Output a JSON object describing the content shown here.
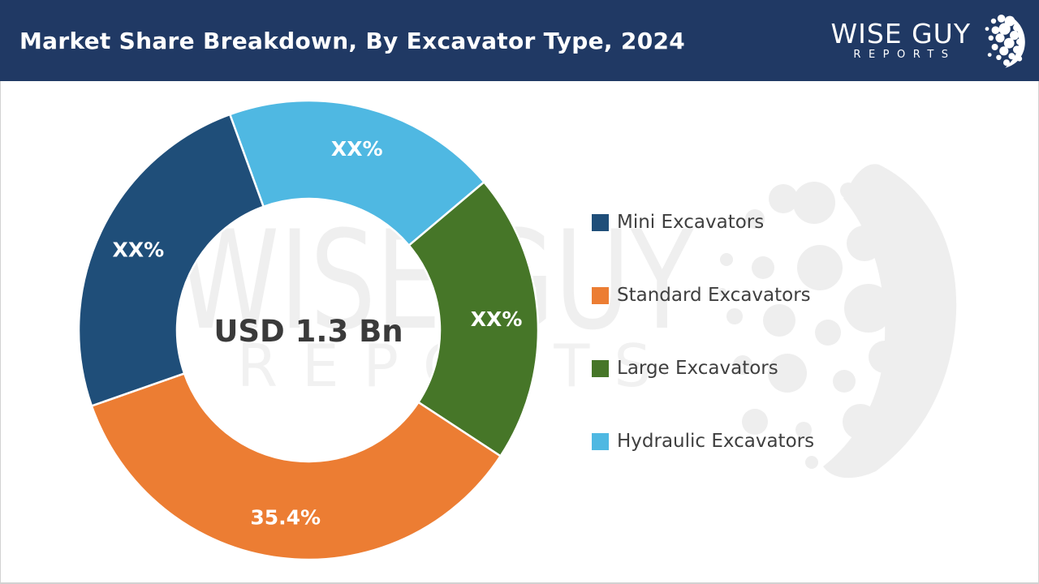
{
  "header": {
    "title": "Market Share Breakdown, By Excavator Type, 2024",
    "background_color": "#203964",
    "logo": {
      "line1": "WISE GUY",
      "line2": "REPORTS"
    }
  },
  "chart_data": {
    "type": "pie",
    "subtype": "donut",
    "title": "Market Share Breakdown, By Excavator Type, 2024",
    "center_label": "USD 1.3 Bn",
    "legend_position": "right",
    "start_angle_deg_clockwise_from_top": -20,
    "segments": [
      {
        "label": "Hydraulic Excavators",
        "display_value": "XX%",
        "share_pct_est": 19.4,
        "color": "#4fb8e2"
      },
      {
        "label": "Large Excavators",
        "display_value": "XX%",
        "share_pct_est": 20.4,
        "color": "#467628"
      },
      {
        "label": "Standard Excavators",
        "display_value": "35.4%",
        "share_pct_est": 35.4,
        "color": "#ec7d33"
      },
      {
        "label": "Mini Excavators",
        "display_value": "XX%",
        "share_pct_est": 24.8,
        "color": "#1f4e79"
      }
    ]
  },
  "legend": {
    "items": [
      {
        "label": "Mini Excavators",
        "color": "#1f4e79"
      },
      {
        "label": "Standard Excavators",
        "color": "#ec7d33"
      },
      {
        "label": "Large Excavators",
        "color": "#467628"
      },
      {
        "label": "Hydraulic Excavators",
        "color": "#4fb8e2"
      }
    ]
  },
  "watermark": {
    "line1": "WISE GUY",
    "line2": "REPORTS"
  },
  "colors": {
    "header_bg": "#203964",
    "center_text": "#3a3a3a",
    "legend_text": "#3f3f3f",
    "segment_label_text": "#ffffff",
    "watermark": "#efefef",
    "frame_border": "#d2d2d2"
  }
}
